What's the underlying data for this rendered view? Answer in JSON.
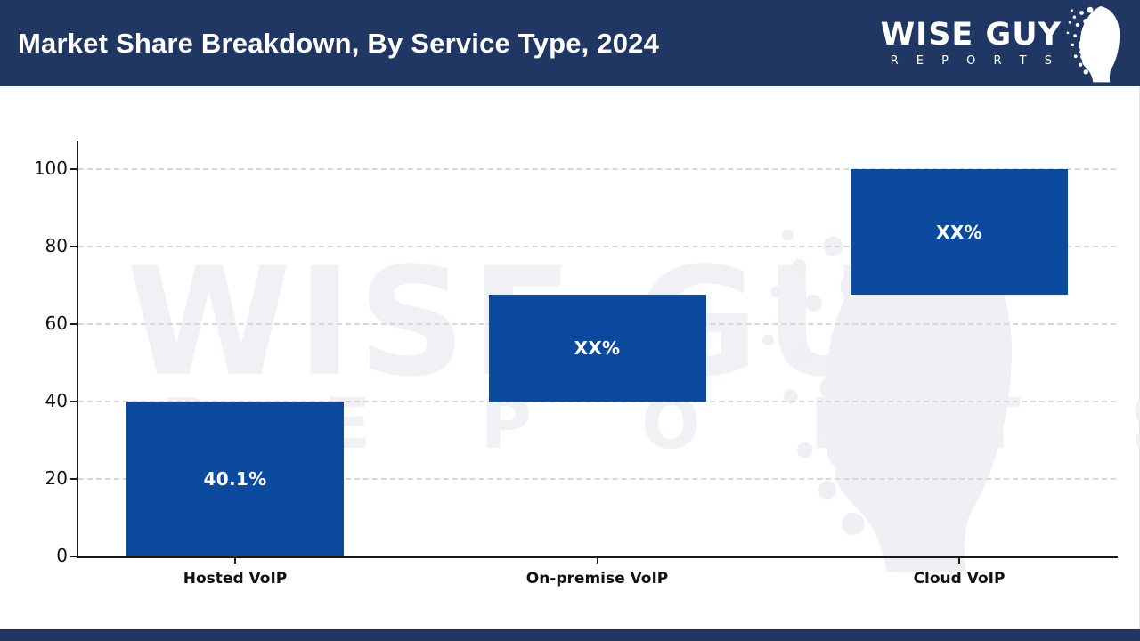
{
  "header": {
    "title": "Market Share Breakdown, By Service Type, 2024",
    "bg_color": "#203663",
    "logo": {
      "line1": "WISE GUY",
      "line2": "R E P O R T S",
      "icon": "head-profile-dots-icon",
      "color": "#ffffff"
    }
  },
  "watermark": {
    "line1": "WISE GUY",
    "line2": "R E P O R T S",
    "color": "#f0f1f4"
  },
  "chart_data": {
    "type": "bar",
    "variant": "floating-segment",
    "title": "Market Share Breakdown, By Service Type, 2024",
    "categories": [
      "Hosted VoIP",
      "On-premise VoIP",
      "Cloud VoIP"
    ],
    "segments": [
      {
        "category": "Hosted VoIP",
        "start": 0,
        "end": 40.1,
        "label": "40.1%"
      },
      {
        "category": "On-premise VoIP",
        "start": 40.1,
        "end": 67.5,
        "label": "XX%"
      },
      {
        "category": "Cloud VoIP",
        "start": 67.5,
        "end": 100,
        "label": "XX%"
      }
    ],
    "xlabel": "",
    "ylabel": "",
    "ylim": [
      0,
      107
    ],
    "yticks": [
      0,
      20,
      40,
      60,
      80,
      100
    ],
    "grid": "horizontal-dashed",
    "legend": "none",
    "bar_color": "#0b4a9f",
    "label_color": "#ffffff",
    "axis_color": "#1a1a1a"
  },
  "footer": {
    "bg_color": "#203663"
  }
}
